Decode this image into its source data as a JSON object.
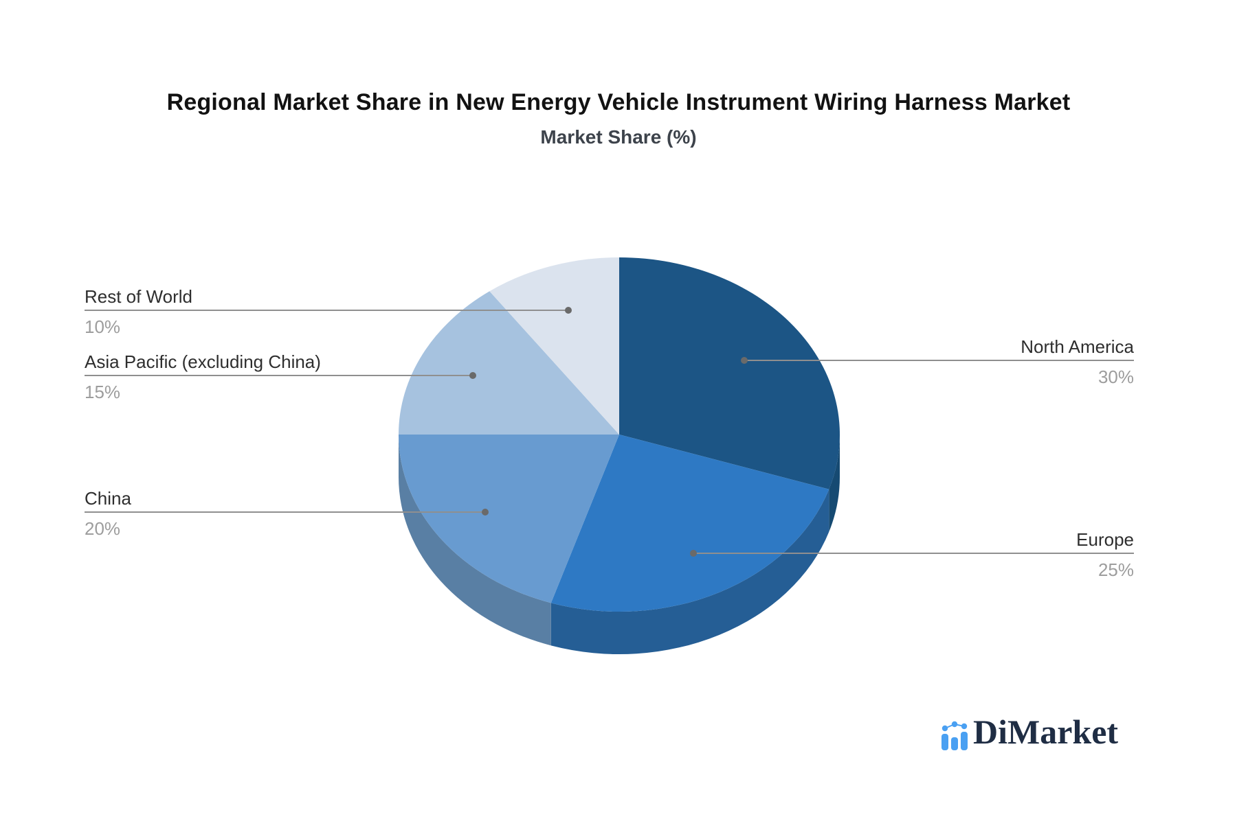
{
  "title": "Regional Market Share in New Energy Vehicle Instrument Wiring Harness Market",
  "subtitle": "Market Share (%)",
  "watermark": {
    "text": "DiMarket",
    "accent_color": "#4aa0f2",
    "text_color": "#1f2d44"
  },
  "palette": {
    "label_name_color": "#2e2e2e",
    "label_value_color": "#9d9d9d",
    "connector_line_color": "#8f8f8f",
    "connector_dot_color": "#6a6a6a",
    "background": "#ffffff"
  },
  "chart_data": {
    "type": "pie",
    "title": "Regional Market Share in New Energy Vehicle Instrument Wiring Harness Market",
    "subtitle": "Market Share (%)",
    "unit": "%",
    "effect_3d": true,
    "start_angle_clockwise_from_top_deg": 0,
    "legend_position": "outside-callout-labels",
    "slices": [
      {
        "label": "North America",
        "value": 30,
        "display": "30%",
        "color": "#1c5585",
        "side_color": "#164a72"
      },
      {
        "label": "Europe",
        "value": 25,
        "display": "25%",
        "color": "#2e79c4",
        "side_color": "#255e95"
      },
      {
        "label": "China",
        "value": 20,
        "display": "20%",
        "color": "#689bd0",
        "side_color": "#597fa4"
      },
      {
        "label": "Asia Pacific (excluding China)",
        "value": 15,
        "display": "15%",
        "color": "#a6c2df",
        "side_color": "#8aa6c4"
      },
      {
        "label": "Rest of World",
        "value": 10,
        "display": "10%",
        "color": "#dbe3ee",
        "side_color": "#bcc8d8"
      }
    ]
  }
}
